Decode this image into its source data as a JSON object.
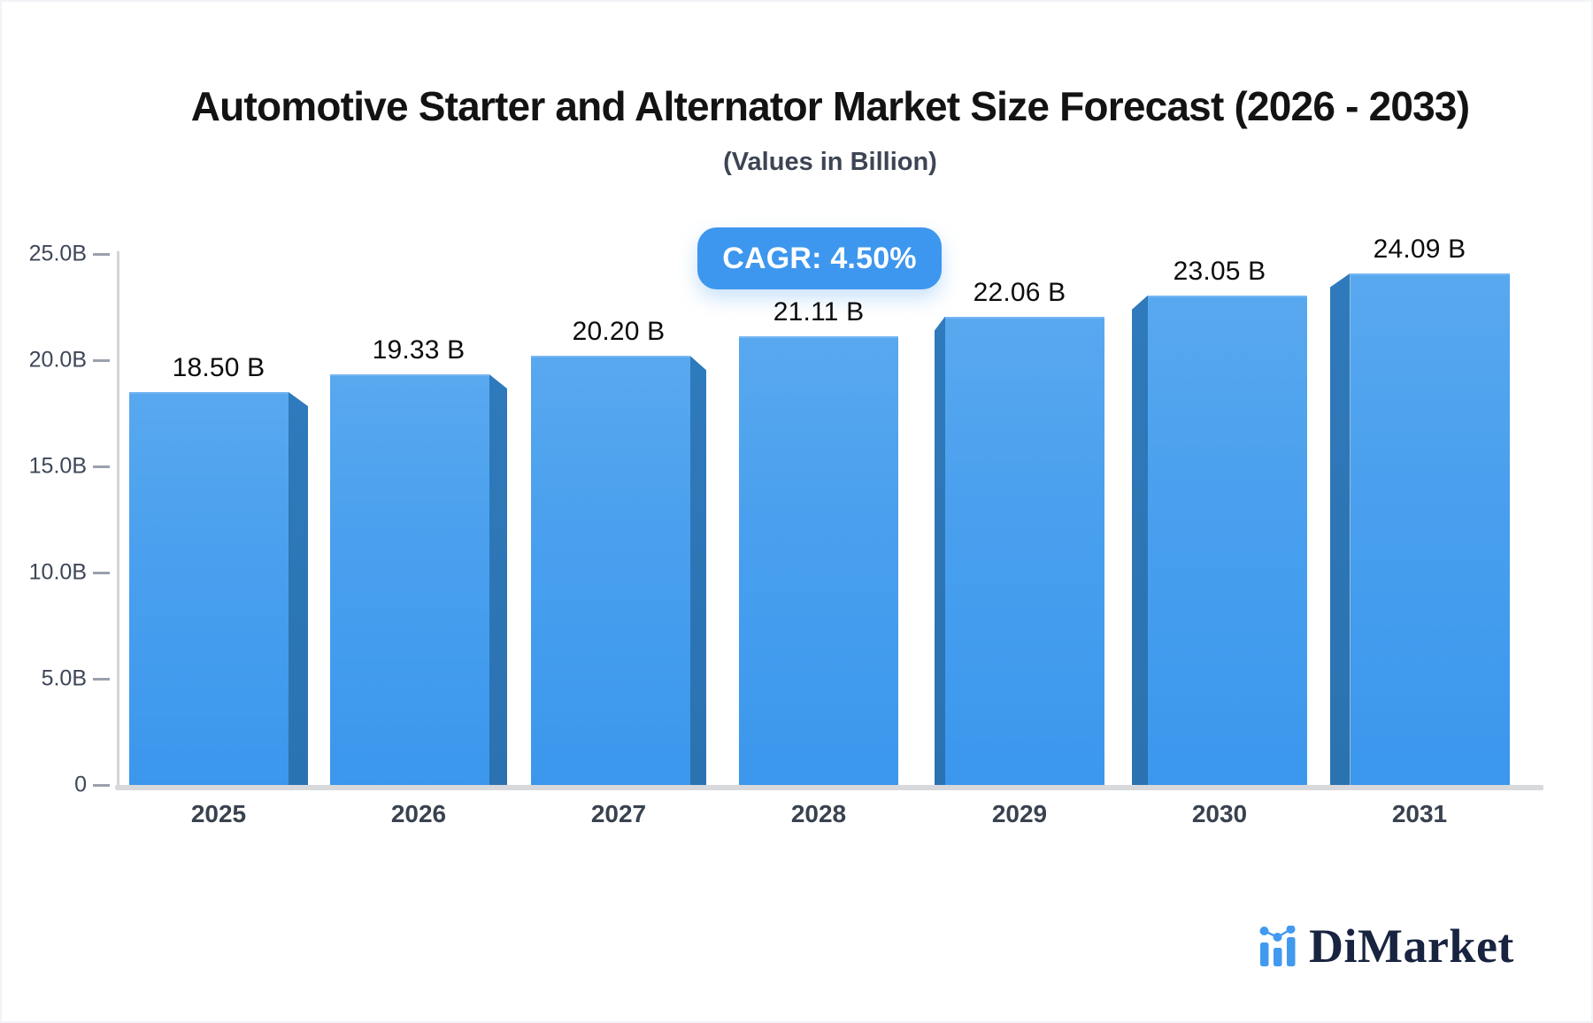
{
  "chart_data": {
    "type": "bar",
    "title": "Automotive Starter and Alternator Market Size Forecast (2026 - 2033)",
    "subtitle": "(Values in Billion)",
    "annotation": "CAGR: 4.50%",
    "categories": [
      "2025",
      "2026",
      "2027",
      "2028",
      "2029",
      "2030",
      "2031"
    ],
    "values": [
      18.5,
      19.33,
      20.2,
      21.11,
      22.06,
      23.05,
      24.09
    ],
    "value_labels": [
      "18.50 B",
      "19.33 B",
      "20.20 B",
      "21.11 B",
      "22.06 B",
      "23.05 B",
      "24.09 B"
    ],
    "y_ticks": [
      {
        "label": "25.0B",
        "value": 25
      },
      {
        "label": "20.0B",
        "value": 20
      },
      {
        "label": "15.0B",
        "value": 15
      },
      {
        "label": "10.0B",
        "value": 10
      },
      {
        "label": "5.0B",
        "value": 5
      },
      {
        "label": "0",
        "value": 0
      }
    ],
    "ylim": [
      0,
      25
    ],
    "xlabel": "",
    "ylabel": "",
    "grid": false,
    "legend": false,
    "colors": {
      "bar_top": "#58a8ef",
      "bar_bottom": "#3b97ed",
      "bar_side": "#2d75b5",
      "badge_bg": "#3e97ee",
      "badge_text": "#ffffff",
      "axis": "#d2d5da",
      "tick_text": "#3e4757",
      "value_text": "#0c0c0c"
    }
  },
  "brand": {
    "name": "DiMarket",
    "icon": "bar-chart-logo-icon",
    "icon_color": "#429af0",
    "text_color": "#182440"
  }
}
